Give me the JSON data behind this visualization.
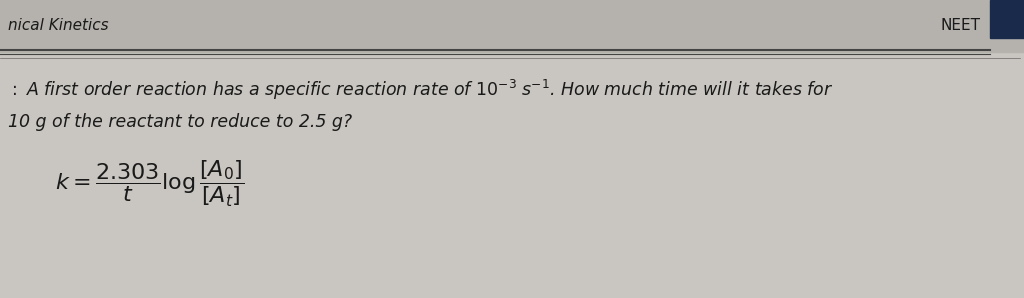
{
  "bg_color_main": "#c8c5c0",
  "bg_color_header": "#b8b5b0",
  "bg_color_content": "#d8d5d0",
  "header_text": "nical Kinetics",
  "neet_text": "NEET",
  "question_line1": "$:$ A first order reaction has a specific reaction rate of $10^{-3}$ s$^{-1}$. How much time will it takes for",
  "question_line2": "10 g of the reactant to reduce to 2.5 g?",
  "formula": "$k = \\dfrac{2.303}{t}\\log\\dfrac{[A_0]}{[A_t]}$",
  "header_font_size": 11,
  "neet_font_size": 11,
  "question_font_size": 12.5,
  "formula_font_size": 16,
  "text_color": "#1a1a1a",
  "line_color_dark": "#444444",
  "line_color_thin": "#666666"
}
